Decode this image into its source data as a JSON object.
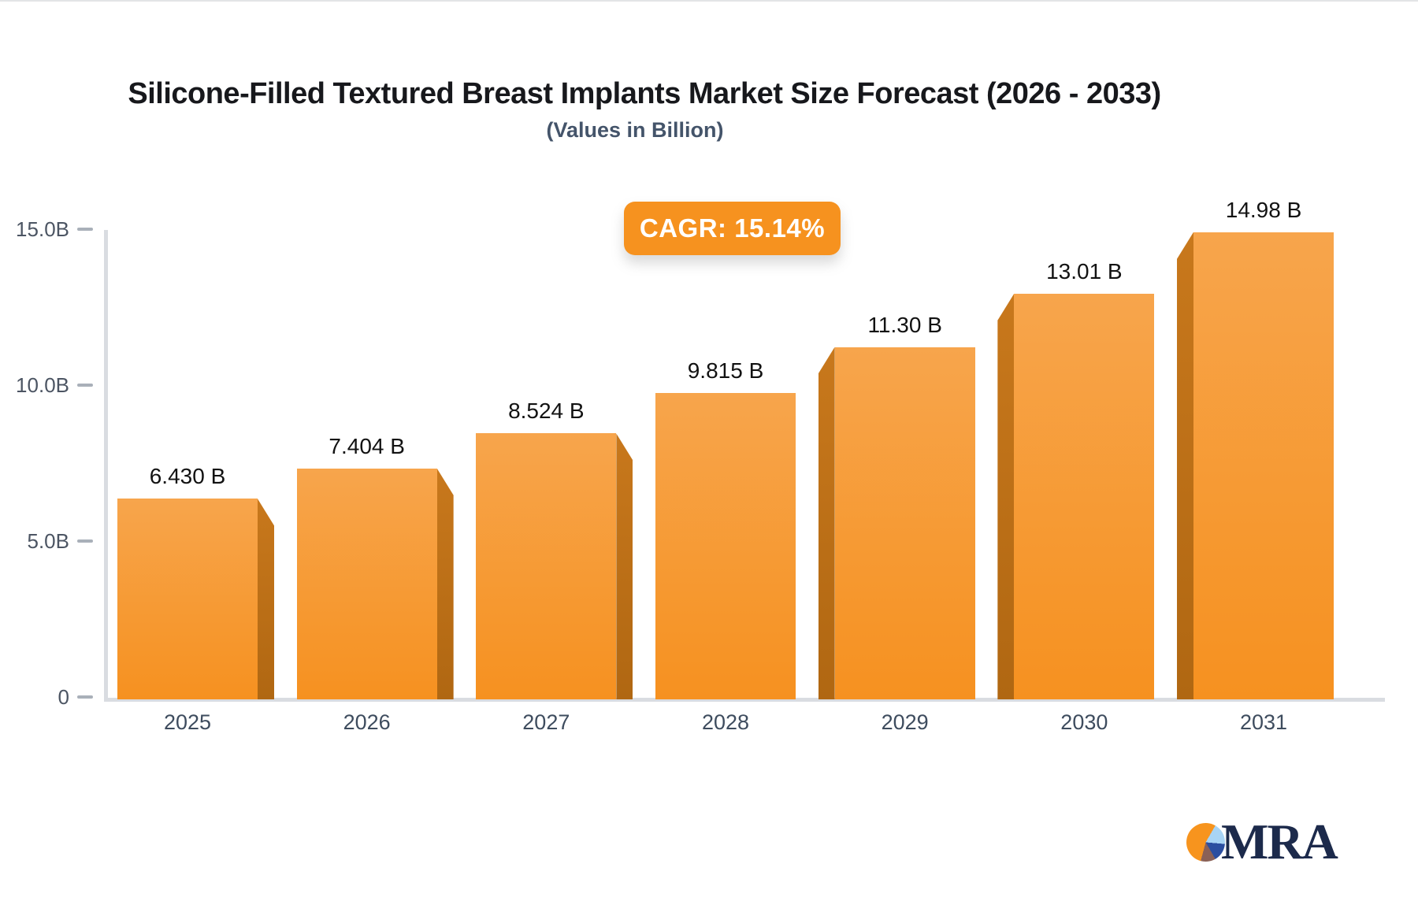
{
  "title": "Silicone-Filled Textured Breast Implants Market Size Forecast (2026 - 2033)",
  "subtitle": "(Values in Billion)",
  "badge": {
    "label": "CAGR: 15.14%",
    "color": "#f6921f",
    "text_color": "#ffffff"
  },
  "chart_data": {
    "type": "bar",
    "categories": [
      "2025",
      "2026",
      "2027",
      "2028",
      "2029",
      "2030",
      "2031"
    ],
    "values": [
      6.43,
      7.404,
      8.524,
      9.815,
      11.3,
      13.01,
      14.98
    ],
    "bar_labels": [
      "6.430 B",
      "7.404 B",
      "8.524 B",
      "9.815 B",
      "11.30 B",
      "13.01 B",
      "14.98 B"
    ],
    "title": "Silicone-Filled Textured Breast Implants Market Size Forecast (2026 - 2033)",
    "subtitle": "(Values in Billion)",
    "xlabel": "",
    "ylabel": "",
    "ylim": [
      0,
      15
    ],
    "y_ticks": [
      {
        "label": "15.0B",
        "value": 15
      },
      {
        "label": "10.0B",
        "value": 10
      },
      {
        "label": "5.0B",
        "value": 5
      },
      {
        "label": "0",
        "value": 0
      }
    ],
    "grid": false,
    "legend": false,
    "bar_color_top": "#f7a54c",
    "bar_color_bottom": "#f69120",
    "bar_side_color": "#b96e15",
    "axis_color": "#d9dce1"
  },
  "logo": {
    "text": "MRA",
    "pie_colors": [
      "#f7941e",
      "#a8d4f5",
      "#2b4ea0",
      "#8a6157"
    ]
  }
}
